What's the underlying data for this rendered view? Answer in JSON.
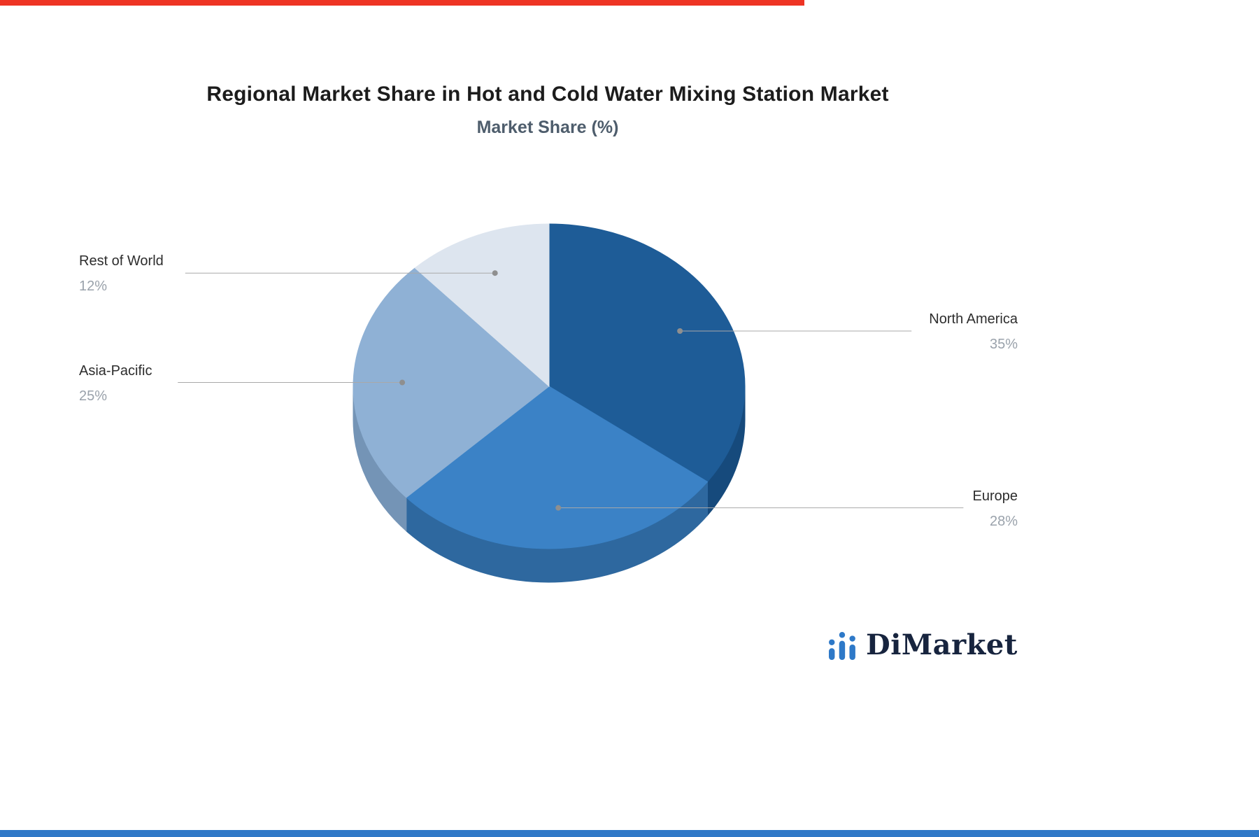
{
  "page": {
    "title": "Regional Market Share in Hot and Cold Water Mixing Station Market",
    "subtitle": "Market Share (%)"
  },
  "branding": {
    "logo_text": "DiMarket",
    "logo_icon": "bar-chart-icon",
    "logo_color": "#2e79c8",
    "logo_text_color": "#17243e"
  },
  "accents": {
    "top_bar_color": "#ee3424",
    "bottom_bar_color": "#2f79c8"
  },
  "chart_data": {
    "type": "pie",
    "title": "Regional Market Share in Hot and Cold Water Mixing Station Market",
    "subtitle": "Market Share (%)",
    "unit": "%",
    "labels": [
      "North America",
      "Europe",
      "Asia-Pacific",
      "Rest of World"
    ],
    "values": [
      35,
      28,
      25,
      12
    ],
    "display_values": [
      "35%",
      "28%",
      "25%",
      "12%"
    ],
    "colors": [
      "#1e5c97",
      "#3b82c6",
      "#8fb1d5",
      "#dde5ef"
    ],
    "side_colors": [
      "#164a7c",
      "#2e689f",
      "#7494b6",
      "#c3cfdd"
    ],
    "style": "3d-pie",
    "start_angle_deg": 0,
    "direction": "clockwise",
    "legend_position": "none",
    "label_style": "callout-lines",
    "callout_line_color": "#a9a9a9",
    "callout_dot_color": "#8f8f8f"
  }
}
